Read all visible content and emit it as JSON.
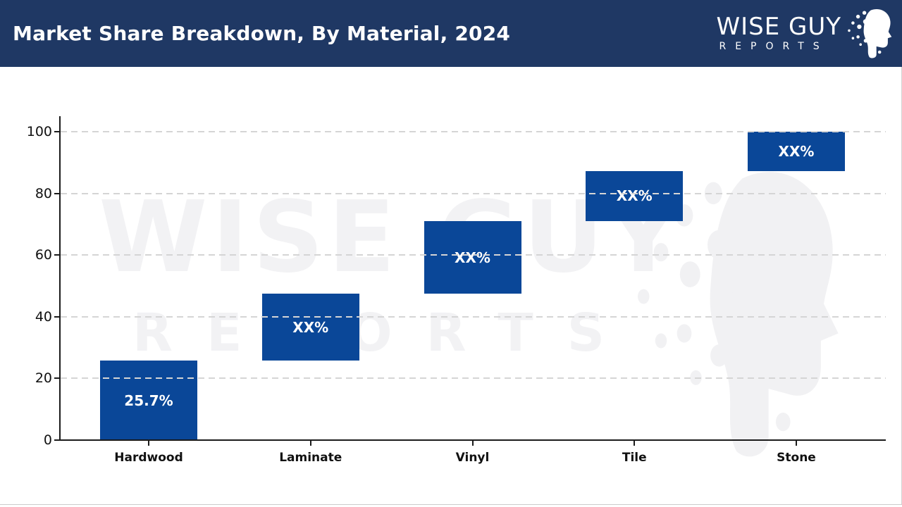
{
  "header": {
    "title": "Market Share Breakdown, By Material, 2024",
    "logo": {
      "line1": "WISE GUY",
      "line2": "REPORTS",
      "head_icon": "dotted-head-profile"
    }
  },
  "watermark": {
    "line1": "WISE GUY",
    "line2": "REPORTS",
    "head_icon": "dotted-head-profile"
  },
  "colors": {
    "header_bg": "#1f3864",
    "bar": "#0a4798",
    "bar_label": "#ffffff",
    "gridline": "#d5d5d5",
    "axis": "#1b1b1b",
    "watermark": "#f2f2f4",
    "background": "#ffffff"
  },
  "chart_data": {
    "type": "bar",
    "subtype": "waterfall",
    "title": "Market Share Breakdown, By Material, 2024",
    "xlabel": "",
    "ylabel": "",
    "categories": [
      "Hardwood",
      "Laminate",
      "Vinyl",
      "Tile",
      "Stone"
    ],
    "segments": [
      {
        "category": "Hardwood",
        "start": 0,
        "end": 25.7,
        "label": "25.7%"
      },
      {
        "category": "Laminate",
        "start": 25.7,
        "end": 47.4,
        "label": "XX%"
      },
      {
        "category": "Vinyl",
        "start": 47.4,
        "end": 70.9,
        "label": "XX%"
      },
      {
        "category": "Tile",
        "start": 70.9,
        "end": 87.3,
        "label": "XX%"
      },
      {
        "category": "Stone",
        "start": 87.3,
        "end": 100.0,
        "label": "XX%"
      }
    ],
    "yticks": [
      0,
      20,
      40,
      60,
      80,
      100
    ],
    "ylim": [
      0,
      105
    ],
    "grid": "horizontal-dashed",
    "legend": "none"
  }
}
